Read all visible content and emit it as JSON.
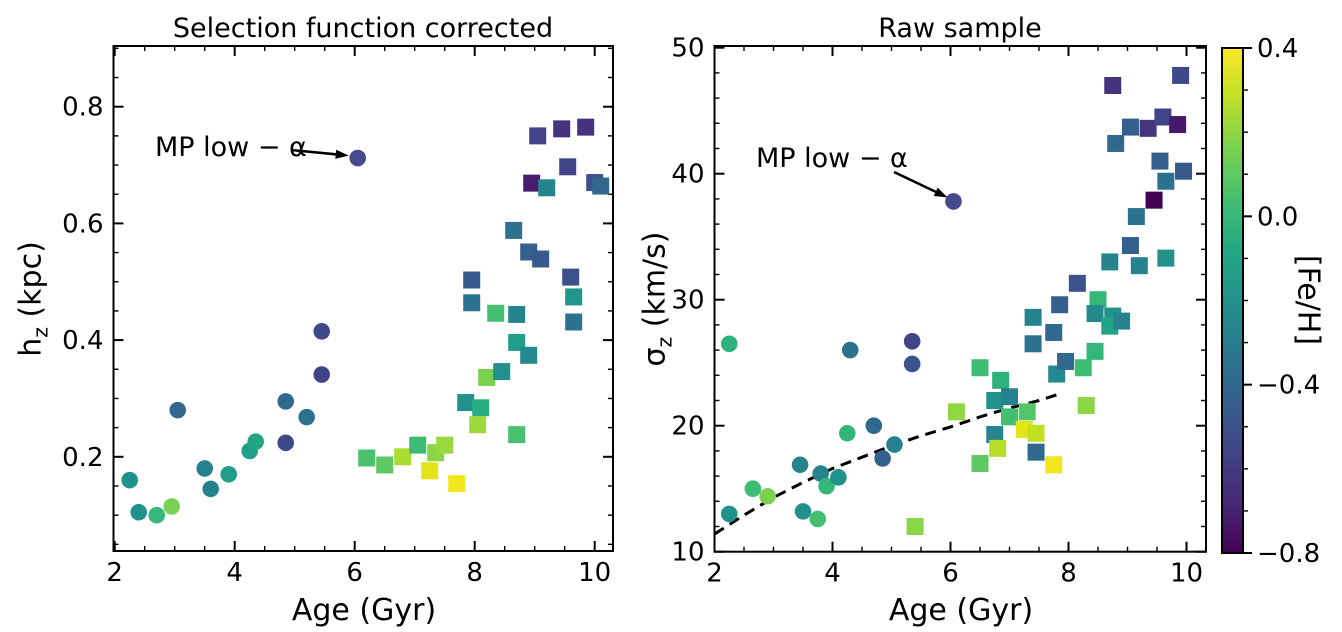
{
  "figure": {
    "background": "#ffffff",
    "spine_color": "#000000",
    "annotation_arrow_color": "#000000"
  },
  "panels": [
    {
      "id": "left",
      "title": "Selection function corrected",
      "xlabel": "Age (Gyr)",
      "ylabel": {
        "base": "h",
        "sub": "z",
        "rest": " (kpc)"
      },
      "xlim": [
        2.0,
        10.31
      ],
      "ylim": [
        0.039,
        0.904
      ],
      "xticks": {
        "major": [
          2,
          4,
          6,
          8,
          10
        ],
        "labels": [
          "2",
          "4",
          "6",
          "8",
          "10"
        ],
        "minor_step": 0.5
      },
      "yticks": {
        "major": [
          0.2,
          0.4,
          0.6,
          0.8
        ],
        "labels": [
          "0.2",
          "0.4",
          "0.6",
          "0.8"
        ],
        "minor_step": 0.05
      },
      "annotation": {
        "text": "MP low − α",
        "target": [
          6.05,
          0.712
        ]
      },
      "series": [
        {
          "name": "young-population-circles",
          "marker": "circle",
          "points": [
            [
              2.25,
              0.16,
              "#21918c"
            ],
            [
              2.4,
              0.105,
              "#21918c"
            ],
            [
              2.7,
              0.1,
              "#35b779"
            ],
            [
              2.95,
              0.115,
              "#7ad151"
            ],
            [
              3.05,
              0.28,
              "#31688e"
            ],
            [
              3.5,
              0.18,
              "#26828e"
            ],
            [
              3.6,
              0.145,
              "#26828e"
            ],
            [
              3.9,
              0.17,
              "#1f9e89"
            ],
            [
              4.25,
              0.21,
              "#1f9e89"
            ],
            [
              4.35,
              0.226,
              "#21a585"
            ],
            [
              4.85,
              0.224,
              "#3f4889"
            ],
            [
              4.85,
              0.295,
              "#31688e"
            ],
            [
              5.2,
              0.268,
              "#2c728e"
            ],
            [
              5.45,
              0.341,
              "#414487"
            ],
            [
              5.45,
              0.415,
              "#3f4889"
            ],
            [
              6.05,
              0.712,
              "#444a8b"
            ]
          ]
        },
        {
          "name": "old-population-squares",
          "marker": "square",
          "points": [
            [
              6.2,
              0.198,
              "#4ac16d"
            ],
            [
              6.5,
              0.186,
              "#5ec962"
            ],
            [
              6.8,
              0.2,
              "#aadc32"
            ],
            [
              7.05,
              0.22,
              "#3fbc73"
            ],
            [
              7.35,
              0.207,
              "#8bd646"
            ],
            [
              7.5,
              0.22,
              "#98d83e"
            ],
            [
              7.25,
              0.176,
              "#e5e419"
            ],
            [
              7.7,
              0.154,
              "#f4e61e"
            ],
            [
              7.85,
              0.293,
              "#21918c"
            ],
            [
              8.1,
              0.284,
              "#27ad81"
            ],
            [
              8.05,
              0.255,
              "#9cd93c"
            ],
            [
              8.7,
              0.238,
              "#47c06f"
            ],
            [
              8.2,
              0.336,
              "#7ad151"
            ],
            [
              8.45,
              0.346,
              "#21918c"
            ],
            [
              8.7,
              0.396,
              "#1f9e89"
            ],
            [
              8.9,
              0.374,
              "#23898e"
            ],
            [
              7.95,
              0.503,
              "#38598c"
            ],
            [
              7.95,
              0.464,
              "#2c728e"
            ],
            [
              8.35,
              0.446,
              "#44bf70"
            ],
            [
              8.7,
              0.444,
              "#25848e"
            ],
            [
              8.65,
              0.588,
              "#2c728e"
            ],
            [
              8.9,
              0.551,
              "#355f8d"
            ],
            [
              9.1,
              0.539,
              "#38598c"
            ],
            [
              9.6,
              0.508,
              "#3b528b"
            ],
            [
              9.65,
              0.474,
              "#1f958b"
            ],
            [
              9.65,
              0.431,
              "#2c728e"
            ],
            [
              9.05,
              0.75,
              "#414487"
            ],
            [
              9.45,
              0.762,
              "#46327e"
            ],
            [
              9.85,
              0.765,
              "#46327e"
            ],
            [
              9.55,
              0.697,
              "#414487"
            ],
            [
              8.95,
              0.669,
              "#481d6f"
            ],
            [
              9.2,
              0.661,
              "#25848e"
            ],
            [
              10.0,
              0.67,
              "#3b528b"
            ],
            [
              10.1,
              0.664,
              "#31688e"
            ]
          ]
        }
      ]
    },
    {
      "id": "right",
      "title": "Raw sample",
      "xlabel": "Age (Gyr)",
      "ylabel": {
        "base": "σ",
        "sub": "z",
        "rest": " (km/s)"
      },
      "xlim": [
        2.0,
        10.34
      ],
      "ylim": [
        10.0,
        50.1
      ],
      "xticks": {
        "major": [
          2,
          4,
          6,
          8,
          10
        ],
        "labels": [
          "2",
          "4",
          "6",
          "8",
          "10"
        ],
        "minor_step": 0.5
      },
      "yticks": {
        "major": [
          10,
          20,
          30,
          40,
          50
        ],
        "labels": [
          "10",
          "20",
          "30",
          "40",
          "50"
        ],
        "minor_step": 2
      },
      "annotation": {
        "text": "MP low − α",
        "target": [
          6.05,
          37.8
        ]
      },
      "dashed_line": [
        [
          2.0,
          11.4
        ],
        [
          2.5,
          12.9
        ],
        [
          3.0,
          14.3
        ],
        [
          3.5,
          15.5
        ],
        [
          4.0,
          16.6
        ],
        [
          4.5,
          17.5
        ],
        [
          5.0,
          18.4
        ],
        [
          5.5,
          19.2
        ],
        [
          6.0,
          19.9
        ],
        [
          6.5,
          20.7
        ],
        [
          7.0,
          21.4
        ],
        [
          7.5,
          22.0
        ],
        [
          7.9,
          22.6
        ]
      ],
      "series": [
        {
          "name": "young-population-circles",
          "marker": "circle",
          "points": [
            [
              2.25,
              26.5,
              "#2db27d"
            ],
            [
              2.25,
              13.0,
              "#21918c"
            ],
            [
              2.65,
              15.0,
              "#3dbc74"
            ],
            [
              2.9,
              14.4,
              "#7ad151"
            ],
            [
              3.45,
              16.9,
              "#26828e"
            ],
            [
              3.5,
              13.2,
              "#21918c"
            ],
            [
              3.75,
              12.6,
              "#44bf70"
            ],
            [
              3.8,
              16.2,
              "#25848e"
            ],
            [
              3.9,
              15.2,
              "#35b779"
            ],
            [
              4.1,
              15.9,
              "#21918c"
            ],
            [
              4.25,
              19.4,
              "#31b57b"
            ],
            [
              4.3,
              26.0,
              "#2c728e"
            ],
            [
              4.7,
              20.0,
              "#31688e"
            ],
            [
              4.85,
              17.4,
              "#355f8d"
            ],
            [
              5.05,
              18.5,
              "#26828e"
            ],
            [
              5.35,
              26.7,
              "#414487"
            ],
            [
              5.35,
              24.9,
              "#3b528b"
            ],
            [
              6.05,
              37.8,
              "#444a8b"
            ]
          ]
        },
        {
          "name": "old-population-squares",
          "marker": "square",
          "points": [
            [
              5.4,
              12.0,
              "#8bd646"
            ],
            [
              6.1,
              21.1,
              "#90d743"
            ],
            [
              6.5,
              24.6,
              "#3fbc73"
            ],
            [
              6.5,
              17.0,
              "#5ec962"
            ],
            [
              6.75,
              22.0,
              "#21918c"
            ],
            [
              6.85,
              23.6,
              "#2db27d"
            ],
            [
              7.0,
              22.3,
              "#26828e"
            ],
            [
              7.0,
              20.7,
              "#44bf70"
            ],
            [
              6.75,
              19.3,
              "#25848e"
            ],
            [
              6.8,
              18.2,
              "#b5de2b"
            ],
            [
              7.25,
              19.7,
              "#e5e419"
            ],
            [
              7.45,
              19.4,
              "#c2df23"
            ],
            [
              7.3,
              21.1,
              "#54c568"
            ],
            [
              7.45,
              17.9,
              "#31688e"
            ],
            [
              7.75,
              16.9,
              "#f4e61e"
            ],
            [
              7.4,
              28.6,
              "#25848e"
            ],
            [
              7.4,
              26.5,
              "#2c728e"
            ],
            [
              7.75,
              27.4,
              "#31688e"
            ],
            [
              7.85,
              29.6,
              "#355f8d"
            ],
            [
              7.8,
              24.1,
              "#23898e"
            ],
            [
              7.95,
              25.1,
              "#31688e"
            ],
            [
              8.25,
              24.6,
              "#3fbc73"
            ],
            [
              8.45,
              25.9,
              "#35b779"
            ],
            [
              8.3,
              21.6,
              "#8bd646"
            ],
            [
              8.15,
              31.3,
              "#3b528b"
            ],
            [
              8.5,
              30.0,
              "#35b779"
            ],
            [
              8.45,
              28.9,
              "#23898e"
            ],
            [
              8.75,
              28.7,
              "#21918c"
            ],
            [
              8.7,
              27.9,
              "#20a486"
            ],
            [
              8.9,
              28.3,
              "#25848e"
            ],
            [
              8.75,
              47.0,
              "#46327e"
            ],
            [
              9.9,
              47.8,
              "#3f4889"
            ],
            [
              9.05,
              43.7,
              "#355f8d"
            ],
            [
              9.35,
              43.6,
              "#453581"
            ],
            [
              9.6,
              44.5,
              "#414487"
            ],
            [
              9.85,
              43.9,
              "#48186a"
            ],
            [
              8.8,
              42.4,
              "#31688e"
            ],
            [
              9.55,
              41.0,
              "#355f8d"
            ],
            [
              9.95,
              40.2,
              "#38598c"
            ],
            [
              9.65,
              39.4,
              "#2c728e"
            ],
            [
              9.45,
              37.9,
              "#440154"
            ],
            [
              9.15,
              36.6,
              "#2c728e"
            ],
            [
              9.05,
              34.3,
              "#355f8d"
            ],
            [
              8.7,
              33.0,
              "#25848e"
            ],
            [
              9.2,
              32.7,
              "#26828e"
            ],
            [
              9.65,
              33.3,
              "#21918c"
            ]
          ]
        }
      ]
    }
  ],
  "colorbar": {
    "label": "[Fe/H]",
    "range": [
      -0.8,
      0.4
    ],
    "ticks": [
      0.4,
      0.0,
      -0.4,
      -0.8
    ],
    "tick_labels": [
      "0.4",
      "0.0",
      "−0.4",
      "−0.8"
    ],
    "minor_step": 0.1,
    "gradient_top_to_bottom": [
      "#fde725",
      "#bddf26",
      "#7ad151",
      "#44bf70",
      "#22a884",
      "#21918c",
      "#2a788e",
      "#355f8d",
      "#414487",
      "#482878",
      "#440154"
    ]
  },
  "chart_data": {
    "type": "scatter",
    "note": "Two-panel scatter, colors encode [Fe/H] via viridis colormap; see panels[] for full point lists (x=Age Gyr, y=value, color hex). Right panel includes dashed power-law fit line.",
    "shared_colorbar": {
      "label": "[Fe/H]",
      "min": -0.8,
      "max": 0.4
    }
  }
}
